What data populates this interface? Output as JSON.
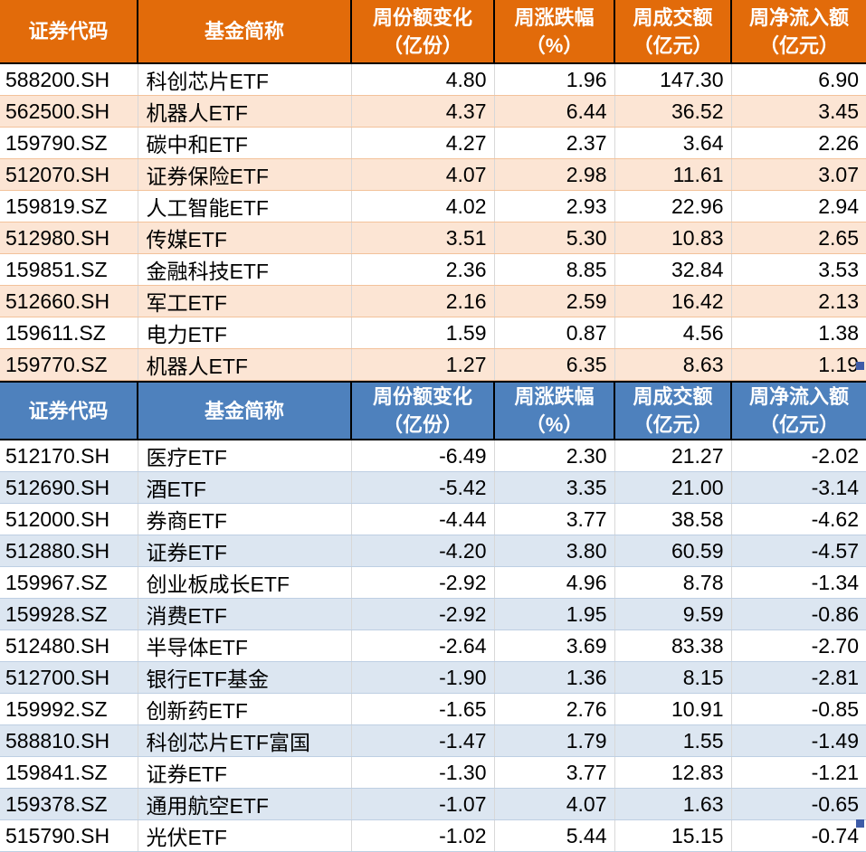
{
  "colors": {
    "inflow_header_bg": "#E26B0A",
    "inflow_row_alt_bg": "#FCE5D4",
    "outflow_header_bg": "#4E81BD",
    "outflow_row_alt_bg": "#DCE6F1",
    "header_text": "#FFFFFF",
    "bottom_border": "#17375E",
    "selection_handle": "#3E5CA8"
  },
  "inflow_table": {
    "headers": [
      {
        "line1": "证券代码"
      },
      {
        "line1": "基金简称"
      },
      {
        "line1": "周份额变化",
        "line2": "（亿份）"
      },
      {
        "line1": "周涨跌幅",
        "line2": "（%）"
      },
      {
        "line1": "周成交额",
        "line2": "（亿元）"
      },
      {
        "line1": "周净流入额",
        "line2": "（亿元）"
      }
    ],
    "rows": [
      {
        "code": "588200.SH",
        "name": "科创芯片ETF",
        "share_change": "4.80",
        "pct_change": "1.96",
        "turnover": "147.30",
        "net_inflow": "6.90"
      },
      {
        "code": "562500.SH",
        "name": "机器人ETF",
        "share_change": "4.37",
        "pct_change": "6.44",
        "turnover": "36.52",
        "net_inflow": "3.45"
      },
      {
        "code": "159790.SZ",
        "name": "碳中和ETF",
        "share_change": "4.27",
        "pct_change": "2.37",
        "turnover": "3.64",
        "net_inflow": "2.26"
      },
      {
        "code": "512070.SH",
        "name": "证券保险ETF",
        "share_change": "4.07",
        "pct_change": "2.98",
        "turnover": "11.61",
        "net_inflow": "3.07"
      },
      {
        "code": "159819.SZ",
        "name": "人工智能ETF",
        "share_change": "4.02",
        "pct_change": "2.93",
        "turnover": "22.96",
        "net_inflow": "2.94"
      },
      {
        "code": "512980.SH",
        "name": "传媒ETF",
        "share_change": "3.51",
        "pct_change": "5.30",
        "turnover": "10.83",
        "net_inflow": "2.65"
      },
      {
        "code": "159851.SZ",
        "name": "金融科技ETF",
        "share_change": "2.36",
        "pct_change": "8.85",
        "turnover": "32.84",
        "net_inflow": "3.53"
      },
      {
        "code": "512660.SH",
        "name": "军工ETF",
        "share_change": "2.16",
        "pct_change": "2.59",
        "turnover": "16.42",
        "net_inflow": "2.13"
      },
      {
        "code": "159611.SZ",
        "name": "电力ETF",
        "share_change": "1.59",
        "pct_change": "0.87",
        "turnover": "4.56",
        "net_inflow": "1.38"
      },
      {
        "code": "159770.SZ",
        "name": "机器人ETF",
        "share_change": "1.27",
        "pct_change": "6.35",
        "turnover": "8.63",
        "net_inflow": "1.19"
      }
    ]
  },
  "outflow_table": {
    "headers": [
      {
        "line1": "证券代码"
      },
      {
        "line1": "基金简称"
      },
      {
        "line1": "周份额变化",
        "line2": "（亿份）"
      },
      {
        "line1": "周涨跌幅",
        "line2": "（%）"
      },
      {
        "line1": "周成交额",
        "line2": "（亿元）"
      },
      {
        "line1": "周净流入额",
        "line2": "（亿元）"
      }
    ],
    "rows": [
      {
        "code": "512170.SH",
        "name": "医疗ETF",
        "share_change": "-6.49",
        "pct_change": "2.30",
        "turnover": "21.27",
        "net_inflow": "-2.02"
      },
      {
        "code": "512690.SH",
        "name": "酒ETF",
        "share_change": "-5.42",
        "pct_change": "3.35",
        "turnover": "21.00",
        "net_inflow": "-3.14"
      },
      {
        "code": "512000.SH",
        "name": "券商ETF",
        "share_change": "-4.44",
        "pct_change": "3.77",
        "turnover": "38.58",
        "net_inflow": "-4.62"
      },
      {
        "code": "512880.SH",
        "name": "证券ETF",
        "share_change": "-4.20",
        "pct_change": "3.80",
        "turnover": "60.59",
        "net_inflow": "-4.57"
      },
      {
        "code": "159967.SZ",
        "name": "创业板成长ETF",
        "share_change": "-2.92",
        "pct_change": "4.96",
        "turnover": "8.78",
        "net_inflow": "-1.34"
      },
      {
        "code": "159928.SZ",
        "name": "消费ETF",
        "share_change": "-2.92",
        "pct_change": "1.95",
        "turnover": "9.59",
        "net_inflow": "-0.86"
      },
      {
        "code": "512480.SH",
        "name": "半导体ETF",
        "share_change": "-2.64",
        "pct_change": "3.69",
        "turnover": "83.38",
        "net_inflow": "-2.70"
      },
      {
        "code": "512700.SH",
        "name": "银行ETF基金",
        "share_change": "-1.90",
        "pct_change": "1.36",
        "turnover": "8.15",
        "net_inflow": "-2.81"
      },
      {
        "code": "159992.SZ",
        "name": "创新药ETF",
        "share_change": "-1.65",
        "pct_change": "2.76",
        "turnover": "10.91",
        "net_inflow": "-0.85"
      },
      {
        "code": "588810.SH",
        "name": "科创芯片ETF富国",
        "share_change": "-1.47",
        "pct_change": "1.79",
        "turnover": "1.55",
        "net_inflow": "-1.49"
      },
      {
        "code": "159841.SZ",
        "name": "证券ETF",
        "share_change": "-1.30",
        "pct_change": "3.77",
        "turnover": "12.83",
        "net_inflow": "-1.21"
      },
      {
        "code": "159378.SZ",
        "name": "通用航空ETF",
        "share_change": "-1.07",
        "pct_change": "4.07",
        "turnover": "1.63",
        "net_inflow": "-0.65"
      },
      {
        "code": "515790.SH",
        "name": "光伏ETF",
        "share_change": "-1.02",
        "pct_change": "5.44",
        "turnover": "15.15",
        "net_inflow": "-0.74"
      }
    ]
  }
}
